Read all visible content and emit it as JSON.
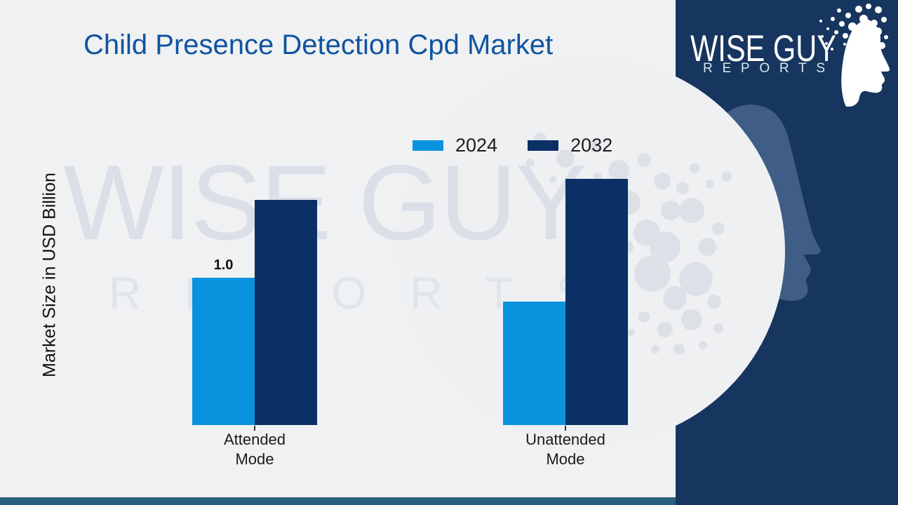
{
  "page": {
    "background_color": "#f0f1f2",
    "bottom_strip_color": "#28617f"
  },
  "header": {
    "title_color": "#0f54a0"
  },
  "logo": {
    "brand_line1": "WISE GUY",
    "brand_line2": "REPORTS",
    "band_color": "#16355f",
    "face_color": "#3f5d87"
  },
  "watermark": {
    "line1": "WISE GUY",
    "line2": "REPORTS"
  },
  "chart_data": {
    "type": "bar",
    "title": "Child Presence Detection Cpd Market",
    "ylabel": "Market Size in USD Billion",
    "xlabel": "",
    "categories": [
      "Attended\nMode",
      "Unattended\nMode"
    ],
    "series": [
      {
        "name": "2024",
        "color": "#0993de",
        "values": [
          1.0,
          0.84
        ],
        "labels": [
          "1.0",
          null
        ]
      },
      {
        "name": "2032",
        "color": "#0b3065",
        "values": [
          1.53,
          1.67
        ],
        "labels": [
          null,
          null
        ]
      }
    ],
    "ylim": [
      0,
      1.9
    ],
    "grid": false,
    "legend_position": "top-center",
    "bar_value_label_shown": "1.0"
  }
}
